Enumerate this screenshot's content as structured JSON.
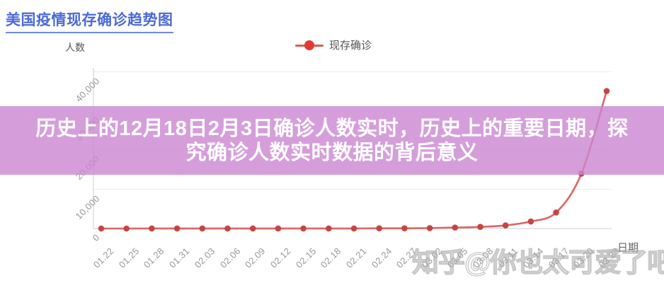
{
  "page": {
    "title": "美国疫情现存确诊趋势图"
  },
  "legend": {
    "item_label": "现存确诊"
  },
  "overlay_headline": {
    "line1": "历史上的12月18日2月3日确诊人数实时，历史上的重要日期，探",
    "line2": "究确诊人数实时数据的背后意义"
  },
  "watermark": {
    "text": "知乎@你也太可爱了吧"
  },
  "colors": {
    "title_blue": "#4c6ad5",
    "banner_purple": "#cb86d2",
    "banner_text": "#ffffff",
    "line_red": "#dd6565",
    "dot_red": "#c64541",
    "legend_dot_red": "#e23a2e",
    "axis_gray": "#cccccc",
    "grid_gray": "#ececec",
    "tick_gray": "#979797"
  },
  "chart_data": {
    "type": "line",
    "smooth": true,
    "title": "美国疫情现存确诊趋势图",
    "series": [
      {
        "name": "现存确诊",
        "values": [
          1,
          1,
          5,
          6,
          8,
          11,
          11,
          12,
          13,
          13,
          15,
          51,
          60,
          100,
          250,
          420,
          800,
          1800,
          4100,
          14000,
          35100
        ]
      }
    ],
    "categories": [
      "01.22",
      "01.25",
      "01.28",
      "01.31",
      "02.03",
      "02.06",
      "02.09",
      "02.12",
      "02.15",
      "02.18",
      "02.21",
      "02.24",
      "02.27",
      "03.02",
      "03.05",
      "03.08",
      "03.11",
      "03.14",
      "03.17",
      "03.20",
      "03.23"
    ],
    "xlabel": "日期",
    "ylabel": "人数",
    "ylim": [
      0,
      40000
    ],
    "yticks": [
      {
        "value": 0,
        "label": "0"
      },
      {
        "value": 10000,
        "label": "10,000"
      },
      {
        "value": 20000,
        "label": "20,000"
      },
      {
        "value": 30000,
        "label": "30,000"
      },
      {
        "value": 40000,
        "label": "40,000"
      }
    ],
    "grid": true,
    "legend_position": "top-center",
    "tick_label_rotation_deg": 45
  }
}
